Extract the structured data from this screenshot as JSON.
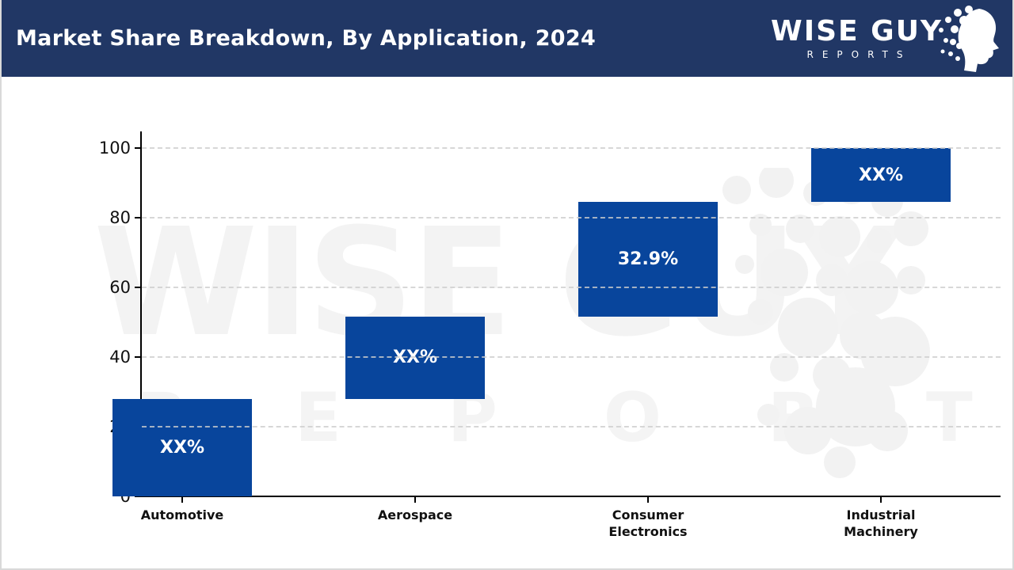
{
  "header": {
    "title": "Market Share Breakdown, By Application, 2024",
    "logo": {
      "line1": "WISE GUY",
      "line2": "REPORTS"
    }
  },
  "watermark": {
    "line1": "WISE GUY",
    "line2": "R E P O R T S"
  },
  "colors": {
    "header_bg": "#213765",
    "bar": "#08459c",
    "bar_label": "#ffffff",
    "axis": "#000000",
    "grid": "#cdcdcd",
    "watermark": "#f3f3f3"
  },
  "chart_data": {
    "type": "bar",
    "subtype": "waterfall-style stepped market share bars summing to 100%",
    "title": "Market Share Breakdown, By Application, 2024",
    "categories": [
      "Automotive",
      "Aerospace",
      "Consumer Electronics",
      "Industrial Machinery"
    ],
    "category_label_lines": [
      [
        "Automotive"
      ],
      [
        "Aerospace"
      ],
      [
        "Consumer",
        "Electronics"
      ],
      [
        "Industrial",
        "Machinery"
      ]
    ],
    "segments": [
      {
        "category": "Automotive",
        "start": 0,
        "end": 28,
        "value_label": "XX%"
      },
      {
        "category": "Aerospace",
        "start": 28,
        "end": 51.6,
        "value_label": "XX%"
      },
      {
        "category": "Consumer Electronics",
        "start": 51.6,
        "end": 84.5,
        "value_label": "32.9%"
      },
      {
        "category": "Industrial Machinery",
        "start": 84.5,
        "end": 100,
        "value_label": "XX%"
      }
    ],
    "xlabel": "",
    "ylabel": "",
    "ylim": [
      0,
      100
    ],
    "yticks": [
      0,
      20,
      40,
      60,
      80,
      100
    ],
    "grid": "horizontal dashed, drawn over bars",
    "legend": "none"
  }
}
